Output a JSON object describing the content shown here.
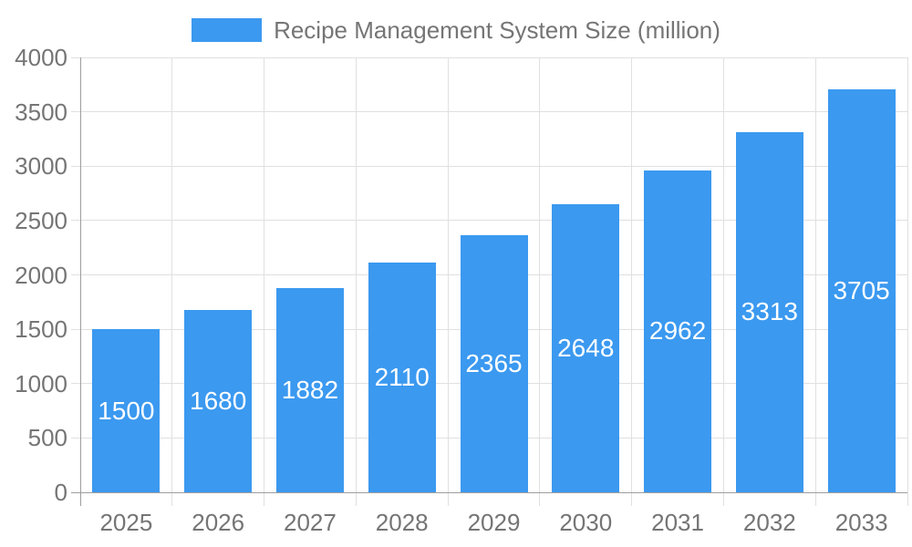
{
  "chart_data": {
    "type": "bar",
    "title": "Recipe Management System Size (million)",
    "legend_entries": [
      "Recipe Management System Size (million)"
    ],
    "legend_position": "top",
    "categories": [
      "2025",
      "2026",
      "2027",
      "2028",
      "2029",
      "2030",
      "2031",
      "2032",
      "2033"
    ],
    "values": [
      1500,
      1680,
      1882,
      2110,
      2365,
      2648,
      2962,
      3313,
      3705
    ],
    "value_labels_shown": [
      "1500",
      "1680",
      "1882",
      "2110",
      "2365",
      "2648",
      "2962",
      "3313",
      "3705"
    ],
    "value_label_position": "inside-center",
    "xlabel": "",
    "ylabel": "",
    "ylim": [
      0,
      4000
    ],
    "y_ticks": [
      0,
      500,
      1000,
      1500,
      2000,
      2500,
      3000,
      3500,
      4000
    ],
    "grid": true
  },
  "colors": {
    "bar": "#3B99F0",
    "axis_text": "#757575",
    "axis_line": "#9e9e9e",
    "gridline": "#e0e0e0",
    "value_label": "#ffffff",
    "background": "#ffffff"
  }
}
